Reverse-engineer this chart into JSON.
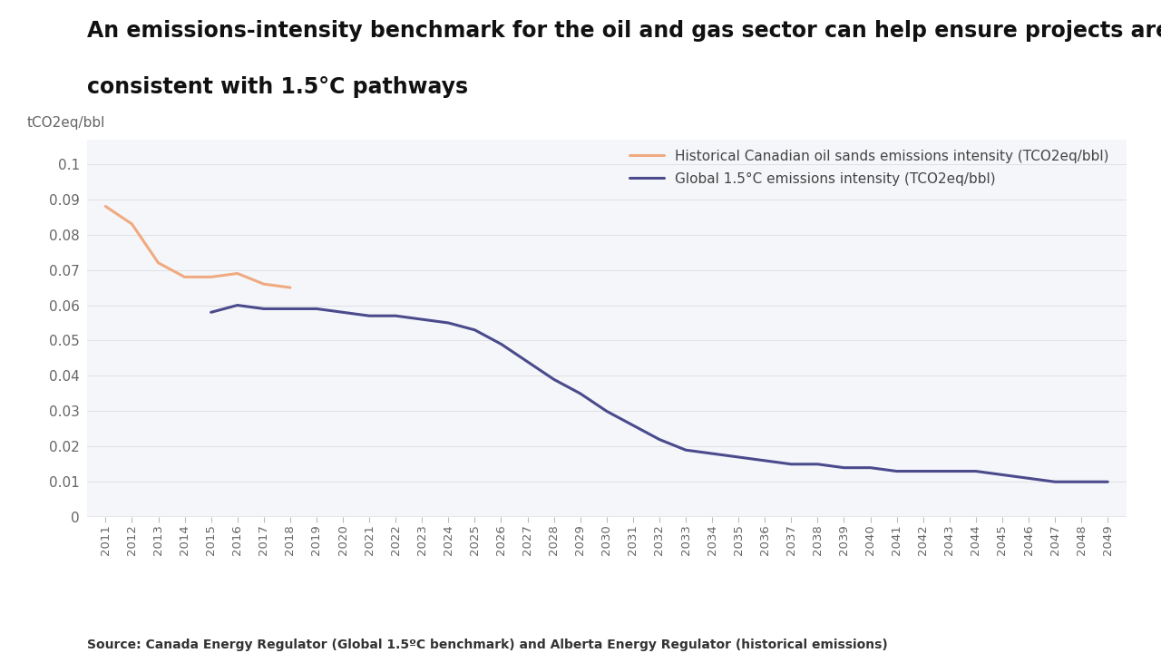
{
  "title_line1": "An emissions-intensity benchmark for the oil and gas sector can help ensure projects are",
  "title_line2": "consistent with 1.5°C pathways",
  "ylabel": "tCO2eq/bbl",
  "source": "Source: Canada Energy Regulator (Global 1.5ºC benchmark) and Alberta Energy Regulator (historical emissions)",
  "background_color": "#ffffff",
  "plot_bg_color": "#f5f6fa",
  "historical_color": "#f0aa80",
  "global_color": "#4a4a8c",
  "legend_label_historical": "Historical Canadian oil sands emissions intensity (TCO2eq/bbl)",
  "legend_label_global": "Global 1.5°C emissions intensity (TCO2eq/bbl)",
  "historical_years": [
    2011,
    2012,
    2013,
    2014,
    2015,
    2016,
    2017,
    2018
  ],
  "historical_values": [
    0.088,
    0.083,
    0.072,
    0.068,
    0.068,
    0.069,
    0.066,
    0.065
  ],
  "global_years": [
    2015,
    2016,
    2017,
    2018,
    2019,
    2020,
    2021,
    2022,
    2023,
    2024,
    2025,
    2026,
    2027,
    2028,
    2029,
    2030,
    2031,
    2032,
    2033,
    2034,
    2035,
    2036,
    2037,
    2038,
    2039,
    2040,
    2041,
    2042,
    2043,
    2044,
    2045,
    2046,
    2047,
    2048,
    2049
  ],
  "global_values": [
    0.058,
    0.06,
    0.059,
    0.059,
    0.059,
    0.058,
    0.057,
    0.057,
    0.056,
    0.055,
    0.053,
    0.049,
    0.044,
    0.039,
    0.035,
    0.03,
    0.026,
    0.022,
    0.019,
    0.018,
    0.017,
    0.016,
    0.015,
    0.015,
    0.014,
    0.014,
    0.013,
    0.013,
    0.013,
    0.013,
    0.012,
    0.011,
    0.01,
    0.01,
    0.01
  ],
  "ylim": [
    0,
    0.107
  ],
  "yticks": [
    0,
    0.01,
    0.02,
    0.03,
    0.04,
    0.05,
    0.06,
    0.07,
    0.08,
    0.09,
    0.1
  ],
  "xtick_years": [
    2011,
    2012,
    2013,
    2014,
    2015,
    2016,
    2017,
    2018,
    2019,
    2020,
    2021,
    2022,
    2023,
    2024,
    2025,
    2026,
    2027,
    2028,
    2029,
    2030,
    2031,
    2032,
    2033,
    2034,
    2035,
    2036,
    2037,
    2038,
    2039,
    2040,
    2041,
    2042,
    2043,
    2044,
    2045,
    2046,
    2047,
    2048,
    2049
  ],
  "title_fontsize": 17,
  "tick_label_color": "#666666",
  "ylabel_color": "#666666",
  "source_color": "#333333"
}
